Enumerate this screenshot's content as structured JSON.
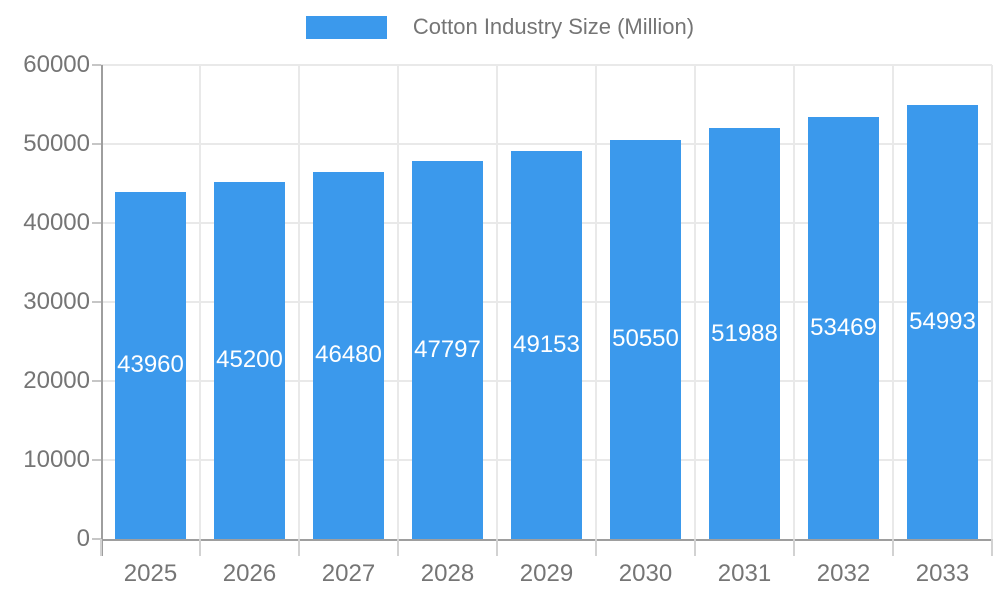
{
  "chart_data": {
    "type": "bar",
    "title": "Cotton Industry Size (Million)",
    "categories": [
      "2025",
      "2026",
      "2027",
      "2028",
      "2029",
      "2030",
      "2031",
      "2032",
      "2033"
    ],
    "values": [
      43960,
      45200,
      46480,
      47797,
      49153,
      50550,
      51988,
      53469,
      54993
    ],
    "value_labels": [
      "43960",
      "45200",
      "46480",
      "47797",
      "49153",
      "50550",
      "51988",
      "53469",
      "54993"
    ],
    "xlabel": "",
    "ylabel": "",
    "ylim": [
      0,
      60000
    ],
    "yticks": [
      0,
      10000,
      20000,
      30000,
      40000,
      50000,
      60000
    ],
    "ytick_labels": [
      "0",
      "10000",
      "20000",
      "30000",
      "40000",
      "50000",
      "60000"
    ],
    "grid": true,
    "legend_position": "top-center",
    "value_labels_position": "inside-center"
  },
  "colors": {
    "bar": "#3b99ec",
    "grid": "#e9e9e9",
    "axis": "#9e9e9e",
    "tick": "#c6c6c6",
    "axis_text": "#757575",
    "legend_text": "#757575",
    "bar_label_text": "#ffffff",
    "background": "#ffffff"
  }
}
